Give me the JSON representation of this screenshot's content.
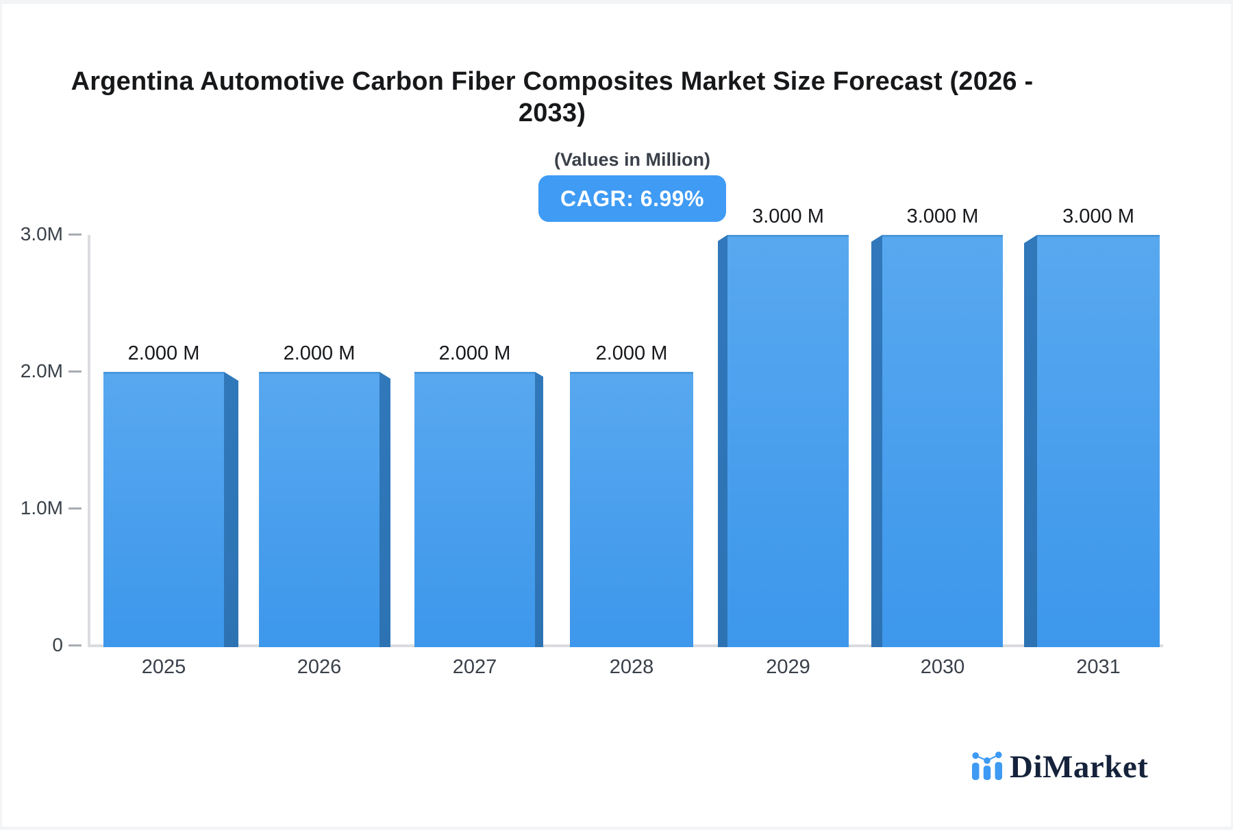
{
  "header": {
    "title_lines": [
      "Argentina Automotive Carbon Fiber Composites Market Size Forecast (2026 -",
      "2033)"
    ],
    "subtitle": "(Values in Million)",
    "cagr_badge": "CAGR: 6.99%"
  },
  "chart_data": {
    "type": "bar",
    "title": "Argentina Automotive Carbon Fiber Composites Market Size Forecast (2026 - 2033)",
    "subtitle": "(Values in Million)",
    "unit": "Million",
    "cagr_percent": 6.99,
    "categories": [
      "2025",
      "2026",
      "2027",
      "2028",
      "2029",
      "2030",
      "2031"
    ],
    "values": [
      2.0,
      2.0,
      2.0,
      2.0,
      3.0,
      3.0,
      3.0
    ],
    "value_labels": [
      "2.000 M",
      "2.000 M",
      "2.000 M",
      "2.000 M",
      "3.000 M",
      "3.000 M",
      "3.000 M"
    ],
    "xlabel": "",
    "ylabel": "",
    "ylim": [
      0,
      3.0
    ],
    "yticks": [
      {
        "label": "0",
        "value": 0
      },
      {
        "label": "1.0M",
        "value": 1
      },
      {
        "label": "2.0M",
        "value": 2
      },
      {
        "label": "3.0M",
        "value": 3
      }
    ],
    "grid": false,
    "legend": null,
    "style_3d": true,
    "bar_face_color_top": "#58a8ef",
    "bar_face_color_bottom": "#3d97eb",
    "bar_side_color": "#2d73b4"
  },
  "branding": {
    "logo_text": "DiMarket",
    "logo_icon": "bar-chart-trend-icon",
    "text_color": "#15223b",
    "icon_color": "#3e9af3"
  },
  "colors": {
    "badge_background": "#3f9bf4",
    "axis": "#dbdde0",
    "tick": "#a7acb3",
    "title_text": "#17181a",
    "subtitle_text": "#3a4049"
  }
}
